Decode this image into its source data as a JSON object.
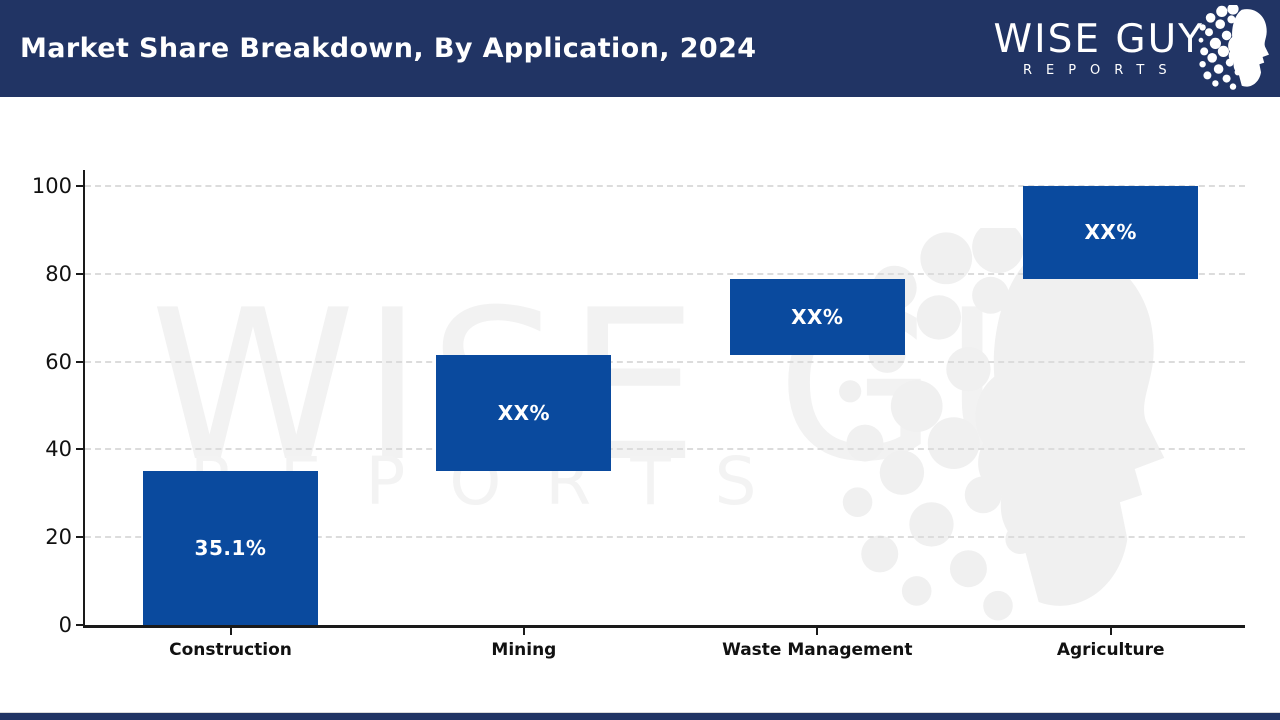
{
  "header": {
    "title": "Market Share Breakdown, By Application, 2024",
    "logo": {
      "line1": "WISE GUY",
      "line2": "REPORTS"
    }
  },
  "watermark": {
    "line1": "WISE GU",
    "line2": "REPORTS"
  },
  "chart_data": {
    "type": "bar",
    "variant": "waterfall",
    "title": "Market Share Breakdown, By Application, 2024",
    "categories": [
      "Construction",
      "Mining",
      "Waste Management",
      "Agriculture"
    ],
    "bars": [
      {
        "category": "Construction",
        "start": 0,
        "end": 35.1,
        "label": "35.1%"
      },
      {
        "category": "Mining",
        "start": 35.1,
        "end": 61.4,
        "label": "XX%"
      },
      {
        "category": "Waste Management",
        "start": 61.4,
        "end": 78.9,
        "label": "XX%"
      },
      {
        "category": "Agriculture",
        "start": 78.9,
        "end": 100,
        "label": "XX%"
      }
    ],
    "xlabel": "",
    "ylabel": "",
    "ylim": [
      0,
      100
    ],
    "yticks": [
      0,
      20,
      40,
      60,
      80,
      100
    ],
    "grid": "horizontal-dashed",
    "legend": false,
    "bar_color": "#0a4a9e",
    "bar_label_color": "#ffffff"
  },
  "colors": {
    "header_bg": "#213464",
    "footer_bg": "#213464",
    "axis": "#1a1a1a",
    "gridline": "#dcdcdc",
    "tick_label": "#111111",
    "watermark": "#f2f2f2"
  }
}
